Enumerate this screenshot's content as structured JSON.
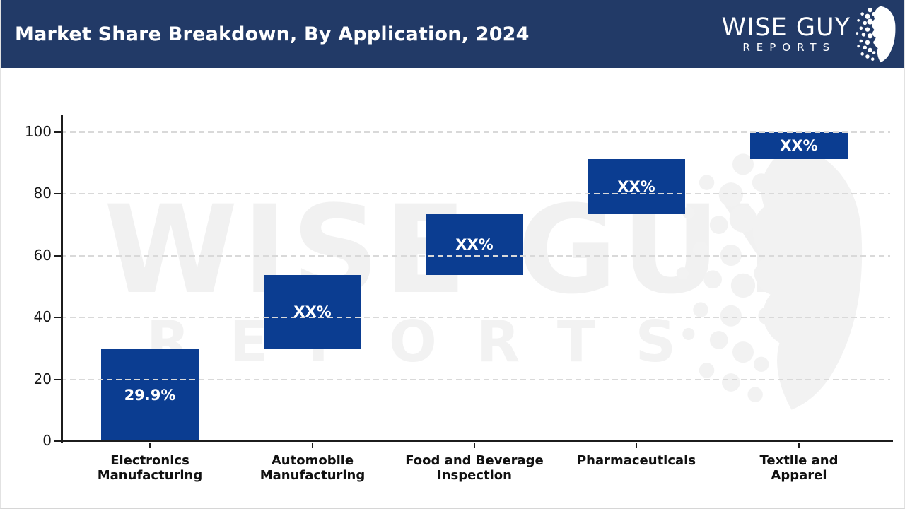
{
  "header": {
    "title": "Market Share Breakdown, By Application, 2024",
    "background_color": "#223a67",
    "logo": {
      "line1": "WISE GUY",
      "line2": "REPORTS",
      "icon": "face-profile-dots"
    }
  },
  "watermark": {
    "line1": "WISE GUY",
    "line2": "REPORTS",
    "icon": "face-profile-dots",
    "color": "#f1f1f1"
  },
  "chart_data": {
    "type": "bar",
    "subtype": "waterfall",
    "title": "Market Share Breakdown, By Application, 2024",
    "categories": [
      "Electronics Manufacturing",
      "Automobile Manufacturing",
      "Food and Beverage Inspection",
      "Pharmaceuticals",
      "Textile and Apparel"
    ],
    "bars": [
      {
        "category": "Electronics Manufacturing",
        "lines": [
          "Electronics",
          "Manufacturing"
        ],
        "start": 0,
        "end": 29.9,
        "label": "29.9%"
      },
      {
        "category": "Automobile Manufacturing",
        "lines": [
          "Automobile",
          "Manufacturing"
        ],
        "start": 29.9,
        "end": 53.8,
        "label": "XX%"
      },
      {
        "category": "Food and Beverage Inspection",
        "lines": [
          "Food and Beverage",
          "Inspection"
        ],
        "start": 53.8,
        "end": 73.5,
        "label": "XX%"
      },
      {
        "category": "Pharmaceuticals",
        "lines": [
          "Pharmaceuticals"
        ],
        "start": 73.5,
        "end": 91.3,
        "label": "XX%"
      },
      {
        "category": "Textile and Apparel",
        "lines": [
          "Textile and",
          "Apparel"
        ],
        "start": 91.3,
        "end": 100,
        "label": "XX%"
      }
    ],
    "yticks": [
      0,
      20,
      40,
      60,
      80,
      100
    ],
    "ylim": [
      0,
      105
    ],
    "xlabel": "",
    "ylabel": "",
    "grid": true,
    "legend": "none",
    "bar_color": "#0b3d91",
    "value_label_color": "#ffffff",
    "gridline_color": "#d9d9d9",
    "axis_color": "#1c1c1c"
  }
}
